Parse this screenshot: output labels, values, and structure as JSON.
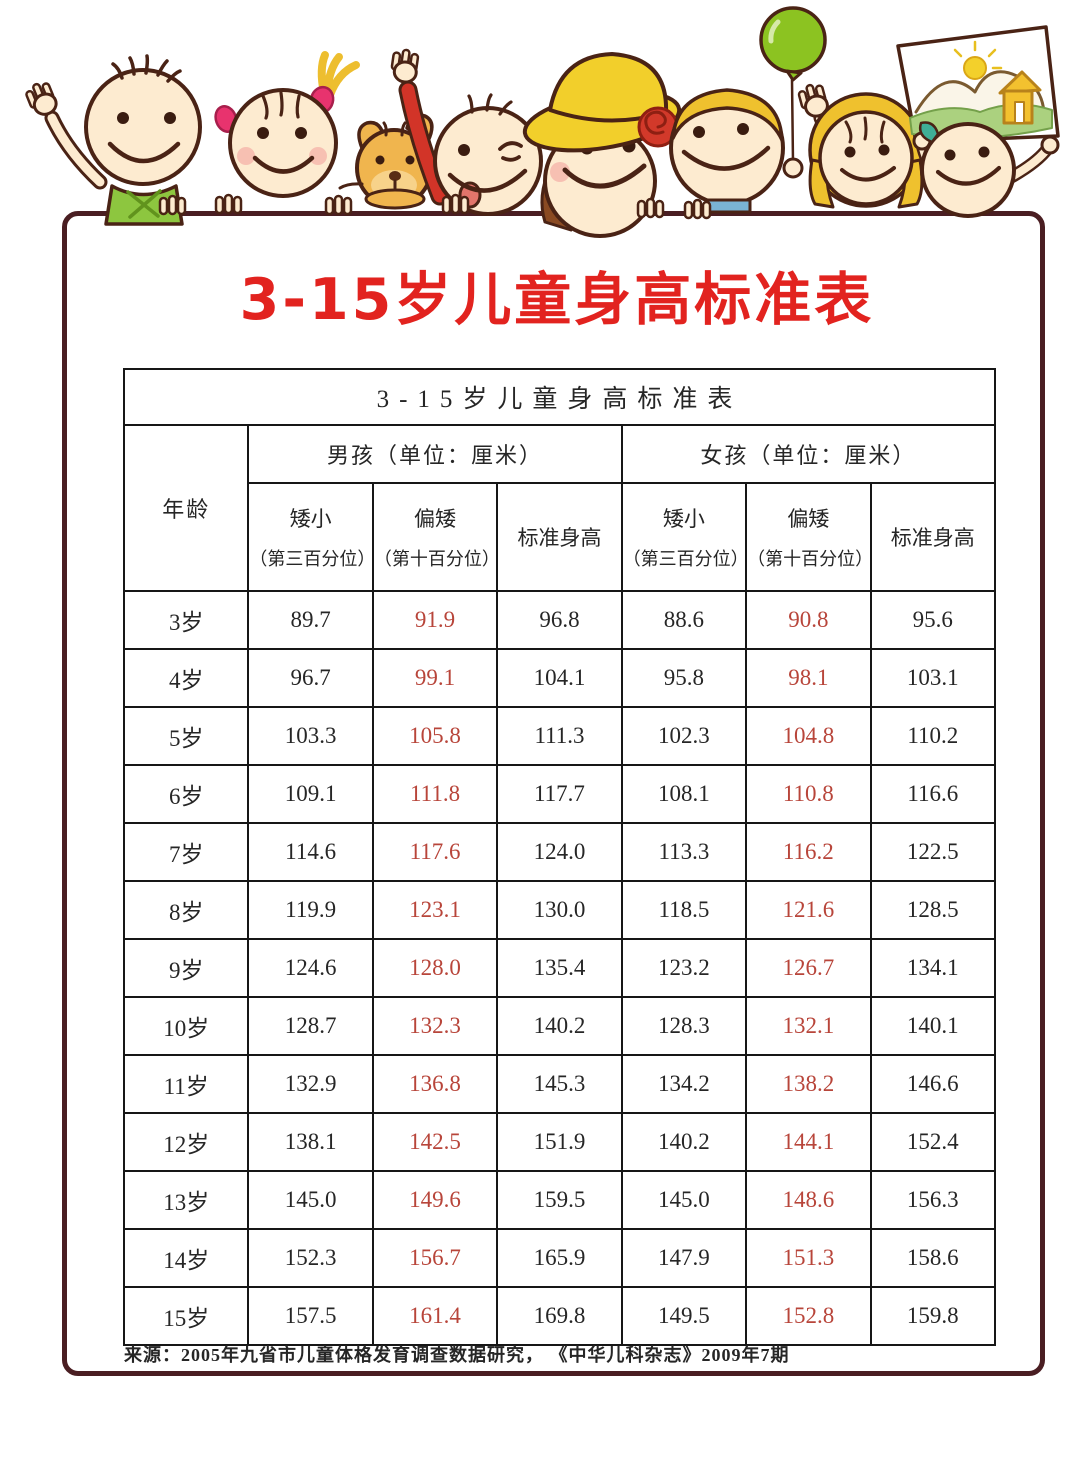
{
  "poster": {
    "main_title": "3-15岁儿童身高标准表",
    "source_note": "来源：2005年九省市儿童体格发育调查数据研究， 《中华儿科杂志》2009年7期"
  },
  "table": {
    "title": "3-15岁儿童身高标准表",
    "age_column_header": "年龄",
    "boys_group_header": "男孩（单位：厘米）",
    "girls_group_header": "女孩（单位：厘米）",
    "sub_headers": {
      "short_title": "矮小",
      "short_subtitle": "（第三百分位）",
      "slightly_short_title": "偏矮",
      "slightly_short_subtitle": "（第十百分位）",
      "standard_title": "标准身高"
    },
    "highlight_columns": [
      1,
      4
    ],
    "rows": [
      {
        "age": "3岁",
        "values": [
          "89.7",
          "91.9",
          "96.8",
          "88.6",
          "90.8",
          "95.6"
        ]
      },
      {
        "age": "4岁",
        "values": [
          "96.7",
          "99.1",
          "104.1",
          "95.8",
          "98.1",
          "103.1"
        ]
      },
      {
        "age": "5岁",
        "values": [
          "103.3",
          "105.8",
          "111.3",
          "102.3",
          "104.8",
          "110.2"
        ]
      },
      {
        "age": "6岁",
        "values": [
          "109.1",
          "111.8",
          "117.7",
          "108.1",
          "110.8",
          "116.6"
        ]
      },
      {
        "age": "7岁",
        "values": [
          "114.6",
          "117.6",
          "124.0",
          "113.3",
          "116.2",
          "122.5"
        ]
      },
      {
        "age": "8岁",
        "values": [
          "119.9",
          "123.1",
          "130.0",
          "118.5",
          "121.6",
          "128.5"
        ]
      },
      {
        "age": "9岁",
        "values": [
          "124.6",
          "128.0",
          "135.4",
          "123.2",
          "126.7",
          "134.1"
        ]
      },
      {
        "age": "10岁",
        "values": [
          "128.7",
          "132.3",
          "140.2",
          "128.3",
          "132.1",
          "140.1"
        ]
      },
      {
        "age": "11岁",
        "values": [
          "132.9",
          "136.8",
          "145.3",
          "134.2",
          "138.2",
          "146.6"
        ]
      },
      {
        "age": "12岁",
        "values": [
          "138.1",
          "142.5",
          "151.9",
          "140.2",
          "144.1",
          "152.4"
        ]
      },
      {
        "age": "13岁",
        "values": [
          "145.0",
          "149.6",
          "159.5",
          "145.0",
          "148.6",
          "156.3"
        ]
      },
      {
        "age": "14岁",
        "values": [
          "152.3",
          "156.7",
          "165.9",
          "147.9",
          "151.3",
          "158.6"
        ]
      },
      {
        "age": "15岁",
        "values": [
          "157.5",
          "161.4",
          "169.8",
          "149.5",
          "152.8",
          "159.8"
        ]
      }
    ]
  },
  "colors": {
    "title_red": "#e2231f",
    "highlight_red": "#b8453a",
    "frame_maroon": "#4a1e22",
    "table_border": "#161616",
    "balloon_green": "#8cc321",
    "hat_yellow": "#f2cf2b"
  }
}
